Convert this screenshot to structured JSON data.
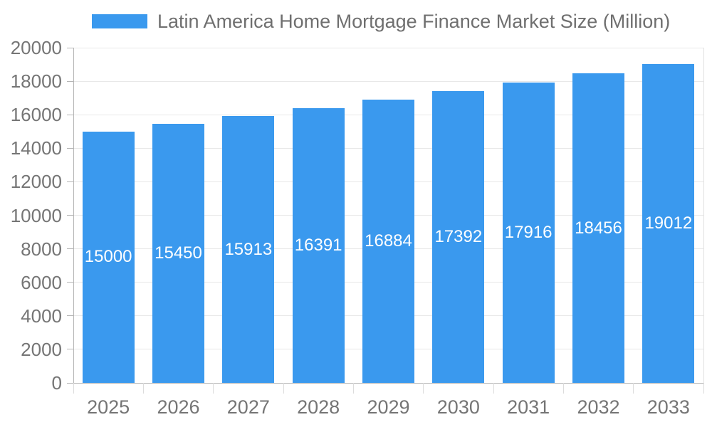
{
  "chart_data": {
    "type": "bar",
    "title": "Latin America Home Mortgage Finance Market Size (Million)",
    "series_name": "Latin America Home Mortgage Finance Market Size (Million)",
    "categories": [
      "2025",
      "2026",
      "2027",
      "2028",
      "2029",
      "2030",
      "2031",
      "2032",
      "2033"
    ],
    "values": [
      15000,
      15450,
      15913,
      16391,
      16884,
      17392,
      17916,
      18456,
      19012
    ],
    "xlabel": "",
    "ylabel": "",
    "ylim": [
      0,
      20000
    ],
    "ytick_step": 2000,
    "yticks": [
      0,
      2000,
      4000,
      6000,
      8000,
      10000,
      12000,
      14000,
      16000,
      18000,
      20000
    ],
    "grid": true,
    "legend_position": "top-center",
    "bar_value_labels": "inside-center"
  },
  "colors": {
    "bar": "#3A99EE",
    "bar_label_text": "#FFFFFF",
    "grid_line": "#E8E8E8",
    "axis_line": "#B5B5B5",
    "x_tick_line": "#DCDCDC",
    "right_border_line": "#E2E2E2",
    "tick_text": "#757575",
    "title_text": "#6F6F6F"
  }
}
